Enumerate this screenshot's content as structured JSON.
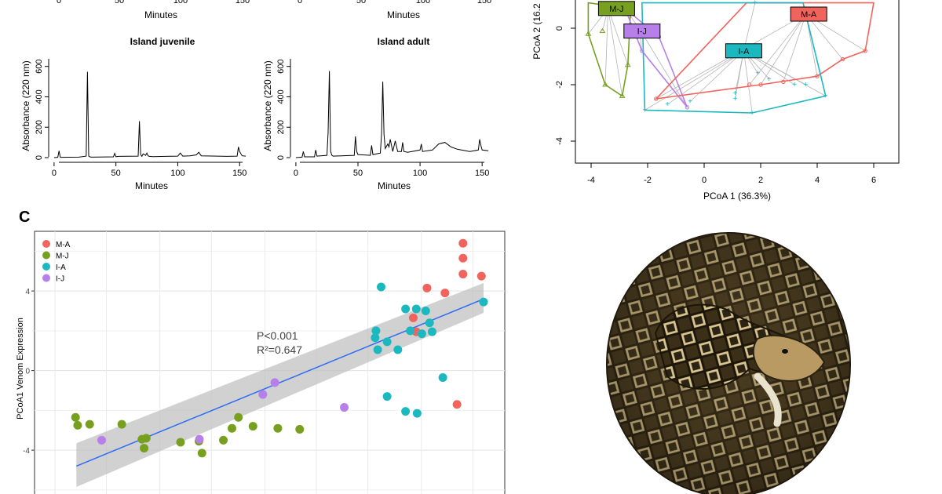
{
  "panels": {
    "chromatograms": {
      "tick_labels": [
        "0",
        "50",
        "100",
        "150"
      ],
      "y_tick_labels": [
        "0",
        "200",
        "400",
        "600"
      ],
      "xlabel": "Minutes",
      "ylabel": "Absorbance (220 nm)",
      "titles": [
        "Island juvenile",
        "Island adult"
      ]
    },
    "pcoa": {
      "xlabel": "PCoA 1 (36.3%)",
      "ylabel": "PCoA 2 (16.2",
      "x_ticks": [
        "-4",
        "-2",
        "0",
        "2",
        "4",
        "6"
      ],
      "y_ticks": [
        "0",
        "-2",
        "-4"
      ],
      "groups": [
        {
          "label": "M-J",
          "color": "#77a020"
        },
        {
          "label": "I-J",
          "color": "#b77fe9"
        },
        {
          "label": "M-A",
          "color": "#f0645d"
        },
        {
          "label": "I-A",
          "color": "#1bb9bf"
        }
      ]
    },
    "scatter": {
      "panel_label": "C",
      "annotation_p": "P<0.001",
      "annotation_r2": "R²=0.647"
    }
  },
  "chart_data": [
    {
      "type": "line",
      "title": "Island juvenile",
      "xlabel": "Minutes",
      "ylabel": "Absorbance (220 nm)",
      "xlim": [
        -5,
        160
      ],
      "ylim": [
        0,
        650
      ],
      "x": [
        0,
        3,
        4,
        5,
        20,
        26,
        27,
        28,
        29,
        30,
        48,
        49,
        50,
        52,
        68,
        69,
        70,
        71,
        72,
        74,
        75,
        76,
        77,
        80,
        90,
        100,
        102,
        104,
        110,
        115,
        117,
        119,
        140,
        148,
        149,
        150,
        152,
        155
      ],
      "y": [
        0,
        2,
        45,
        2,
        3,
        10,
        565,
        10,
        5,
        3,
        5,
        28,
        6,
        8,
        10,
        240,
        20,
        8,
        25,
        15,
        30,
        12,
        8,
        6,
        8,
        10,
        30,
        10,
        12,
        18,
        35,
        12,
        8,
        10,
        70,
        40,
        12,
        10
      ]
    },
    {
      "type": "line",
      "title": "Island adult",
      "xlabel": "Minutes",
      "ylabel": "Absorbance (220 nm)",
      "xlim": [
        -5,
        160
      ],
      "ylim": [
        0,
        650
      ],
      "x": [
        0,
        5,
        6,
        7,
        15,
        16,
        17,
        25,
        26,
        27,
        28,
        29,
        30,
        47,
        48,
        49,
        50,
        60,
        61,
        62,
        68,
        69,
        70,
        71,
        72,
        74,
        75,
        76,
        78,
        80,
        82,
        85,
        86,
        87,
        90,
        100,
        101,
        102,
        110,
        115,
        120,
        125,
        130,
        140,
        147,
        148,
        149,
        150,
        155
      ],
      "y": [
        0,
        3,
        40,
        5,
        5,
        50,
        10,
        15,
        170,
        570,
        40,
        15,
        10,
        15,
        140,
        40,
        20,
        15,
        80,
        20,
        30,
        160,
        500,
        150,
        60,
        90,
        70,
        120,
        40,
        110,
        40,
        40,
        100,
        40,
        35,
        50,
        90,
        40,
        50,
        90,
        100,
        70,
        55,
        40,
        50,
        120,
        80,
        50,
        45
      ]
    },
    {
      "type": "scatter",
      "xlabel": "PCoA 1 (36.3%)",
      "ylabel": "PCoA 2 (16.2",
      "xlim": [
        -4.5,
        7
      ],
      "ylim": [
        -5,
        1
      ],
      "ticks_x": [
        -4,
        -2,
        0,
        2,
        4,
        6
      ],
      "ticks_y": [
        0,
        -2,
        -4
      ],
      "series": [
        {
          "name": "M-J",
          "color": "#77a020",
          "centroid": [
            -3.4,
            0.7
          ],
          "label_at": [
            -3.1,
            0.7
          ],
          "hull": [
            [
              -4.1,
              -0.2
            ],
            [
              -3.5,
              -2.0
            ],
            [
              -2.9,
              -2.4
            ],
            [
              -2.7,
              -1.3
            ],
            [
              -2.6,
              0.7
            ],
            [
              -4.1,
              0.9
            ]
          ],
          "points": [
            [
              -4.1,
              -0.2
            ],
            [
              -3.5,
              -2.0
            ],
            [
              -2.9,
              -2.4
            ],
            [
              -2.7,
              -1.3
            ],
            [
              -3.6,
              -0.1
            ],
            [
              -2.8,
              0.5
            ]
          ]
        },
        {
          "name": "I-J",
          "color": "#b77fe9",
          "centroid": [
            -2.3,
            0.0
          ],
          "label_at": [
            -2.2,
            -0.1
          ],
          "hull": [
            [
              -2.8,
              0.7
            ],
            [
              -2.2,
              -0.8
            ],
            [
              -0.6,
              -2.8
            ],
            [
              -1.6,
              -0.3
            ]
          ],
          "points": [
            [
              -2.8,
              0.7
            ],
            [
              -2.2,
              -0.8
            ],
            [
              -0.6,
              -2.8
            ],
            [
              -1.6,
              -0.3
            ]
          ]
        },
        {
          "name": "M-A",
          "color": "#f0645d",
          "centroid": [
            3.6,
            0.5
          ],
          "label_at": [
            3.7,
            0.5
          ],
          "hull": [
            [
              -1.7,
              -2.5
            ],
            [
              2.0,
              -2.0
            ],
            [
              4.0,
              -1.7
            ],
            [
              4.9,
              -1.1
            ],
            [
              5.7,
              -0.8
            ],
            [
              6.0,
              0.9
            ],
            [
              1.5,
              0.9
            ]
          ],
          "points": [
            [
              -1.7,
              -2.5
            ],
            [
              2.0,
              -2.0
            ],
            [
              4.0,
              -1.7
            ],
            [
              4.9,
              -1.1
            ],
            [
              5.7,
              -0.8
            ],
            [
              1.6,
              -2.0
            ],
            [
              2.8,
              -1.9
            ],
            [
              3.4,
              0.5
            ]
          ]
        },
        {
          "name": "I-A",
          "color": "#1bb9bf",
          "centroid": [
            1.4,
            -0.8
          ],
          "label_at": [
            1.4,
            -0.8
          ],
          "hull": [
            [
              -2.1,
              -2.9
            ],
            [
              1.7,
              -3.0
            ],
            [
              4.3,
              -2.4
            ],
            [
              3.5,
              0.9
            ],
            [
              -2.2,
              0.9
            ]
          ],
          "points": [
            [
              -2.1,
              -2.9
            ],
            [
              1.7,
              -3.0
            ],
            [
              4.3,
              -2.4
            ],
            [
              -1.3,
              -2.7
            ],
            [
              1.1,
              -2.3
            ],
            [
              1.1,
              -2.5
            ],
            [
              1.9,
              -1.6
            ],
            [
              2.3,
              -1.8
            ],
            [
              3.2,
              -2.0
            ],
            [
              3.6,
              -2.0
            ],
            [
              -0.5,
              -2.6
            ],
            [
              1.8,
              0.9
            ]
          ]
        }
      ]
    },
    {
      "type": "scatter",
      "ylabel": "PCoA1 Venom Expression",
      "xlim": [
        0,
        1
      ],
      "ylim": [
        -6.4,
        7.0
      ],
      "ticks_y": [
        4,
        0,
        -4
      ],
      "series": [
        {
          "name": "M-A",
          "color": "#f0645d",
          "x": [
            0.952,
            0.952,
            0.952,
            0.995,
            0.868,
            0.91,
            0.836,
            0.843,
            0.938
          ],
          "y": [
            6.4,
            5.65,
            4.85,
            4.75,
            4.15,
            3.9,
            2.65,
            1.95,
            -1.7
          ]
        },
        {
          "name": "M-J",
          "color": "#77a020",
          "x": [
            0.048,
            0.053,
            0.081,
            0.156,
            0.203,
            0.208,
            0.213,
            0.293,
            0.336,
            0.343,
            0.393,
            0.428,
            0.413,
            0.462,
            0.52,
            0.571
          ],
          "y": [
            -2.35,
            -2.75,
            -2.7,
            -2.7,
            -3.45,
            -3.9,
            -3.4,
            -3.6,
            -3.55,
            -4.15,
            -3.5,
            -2.35,
            -2.9,
            -2.8,
            -2.9,
            -2.95
          ]
        },
        {
          "name": "I-A",
          "color": "#1bb9bf",
          "x": [
            0.761,
            0.818,
            0.843,
            0.865,
            0.874,
            0.88,
            0.856,
            0.749,
            0.747,
            0.753,
            0.775,
            0.8,
            0.845,
            0.775,
            0.905,
            0.818,
            0.829,
            1.0
          ],
          "y": [
            4.2,
            3.1,
            3.1,
            3.0,
            2.4,
            1.95,
            1.85,
            2.0,
            1.65,
            1.05,
            1.45,
            1.05,
            -2.15,
            -1.3,
            -0.35,
            -2.05,
            2.0,
            3.45
          ]
        },
        {
          "name": "I-J",
          "color": "#b77fe9",
          "x": [
            0.109,
            0.337,
            0.485,
            0.513,
            0.675
          ],
          "y": [
            -3.5,
            -3.45,
            -1.2,
            -0.6,
            -1.85
          ]
        }
      ],
      "fit": {
        "x": [
          0.05,
          1.0
        ],
        "y": [
          -4.8,
          3.6
        ],
        "ci_lower": [
          -5.85,
          2.9
        ],
        "ci_upper": [
          -3.65,
          4.4
        ],
        "color": "#2d6df6"
      },
      "legend": [
        "M-A",
        "M-J",
        "I-A",
        "I-J"
      ],
      "annotation": [
        "P<0.001",
        "R²=0.647"
      ]
    }
  ]
}
